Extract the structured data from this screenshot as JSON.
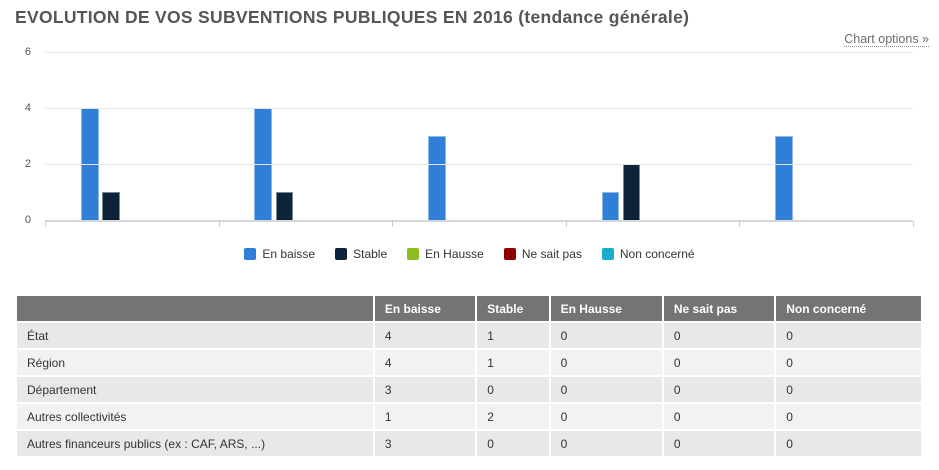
{
  "header": {
    "title": "EVOLUTION DE VOS SUBVENTIONS PUBLIQUES EN 2016 (tendance générale)",
    "chart_options_label": "Chart options »"
  },
  "chart_data": {
    "type": "bar",
    "title": "",
    "xlabel": "",
    "ylabel": "",
    "categories": [
      "État",
      "Région",
      "Département",
      "Autres collectivités",
      "Autres financeurs publics (ex : CAF, ARS, ...)"
    ],
    "x_axis_labels_visible": false,
    "series": [
      {
        "name": "En baisse",
        "color": "#2f7ed8",
        "values": [
          4,
          4,
          3,
          1,
          3
        ]
      },
      {
        "name": "Stable",
        "color": "#0d233a",
        "values": [
          1,
          1,
          0,
          2,
          0
        ]
      },
      {
        "name": "En Hausse",
        "color": "#8bbc21",
        "values": [
          0,
          0,
          0,
          0,
          0
        ]
      },
      {
        "name": "Ne sait pas",
        "color": "#910000",
        "values": [
          0,
          0,
          0,
          0,
          0
        ]
      },
      {
        "name": "Non concerné",
        "color": "#1aadce",
        "values": [
          0,
          0,
          0,
          0,
          0
        ]
      }
    ],
    "ylim": [
      0,
      6
    ],
    "yticks": [
      0,
      2,
      4,
      6
    ],
    "grid": true,
    "legend_position": "bottom"
  },
  "table": {
    "columns": [
      "",
      "En baisse",
      "Stable",
      "En Hausse",
      "Ne sait pas",
      "Non concerné"
    ],
    "rows": [
      {
        "label": "État",
        "values": [
          4,
          1,
          0,
          0,
          0
        ]
      },
      {
        "label": "Région",
        "values": [
          4,
          1,
          0,
          0,
          0
        ]
      },
      {
        "label": "Département",
        "values": [
          3,
          0,
          0,
          0,
          0
        ]
      },
      {
        "label": "Autres collectivités",
        "values": [
          1,
          2,
          0,
          0,
          0
        ]
      },
      {
        "label": "Autres financeurs publics (ex : CAF, ARS, ...)",
        "values": [
          3,
          0,
          0,
          0,
          0
        ]
      }
    ]
  }
}
